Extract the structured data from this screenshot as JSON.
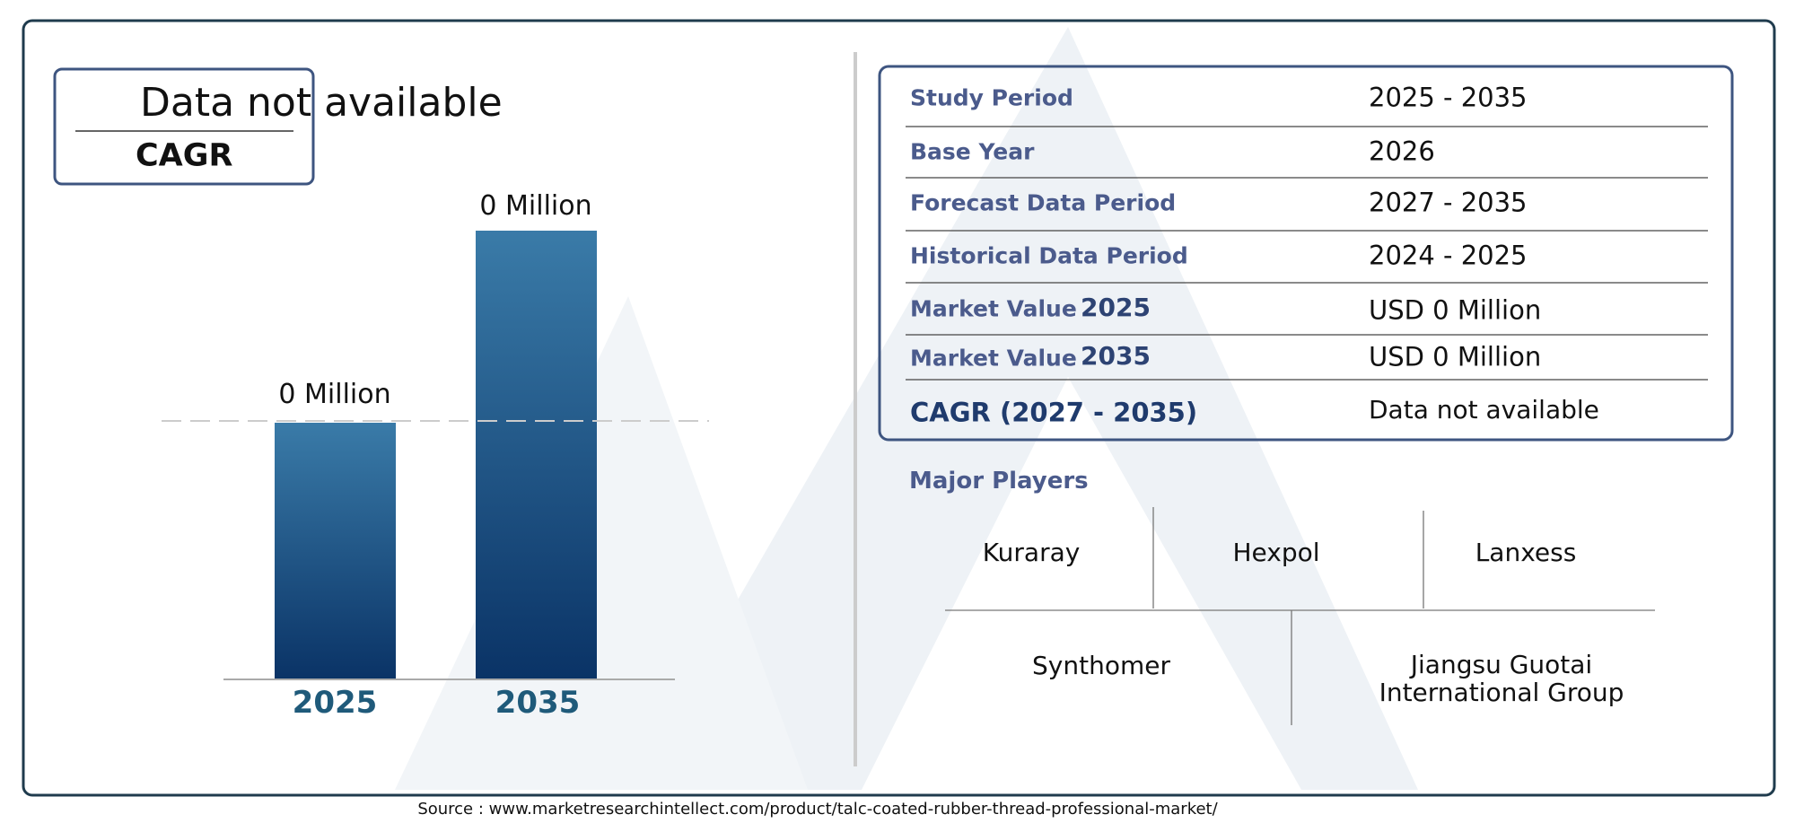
{
  "cagr_box": {
    "value": "Data not available",
    "label": "CAGR"
  },
  "bars": [
    {
      "label": "0 Million",
      "year": "2025"
    },
    {
      "label": "0 Million",
      "year": "2035"
    }
  ],
  "table": {
    "rows": [
      {
        "label": "Study Period",
        "value": "2025 - 2035"
      },
      {
        "label": "Base Year",
        "value": "2026"
      },
      {
        "label": "Forecast Data Period",
        "value": "2027 - 2035"
      },
      {
        "label": "Historical Data Period",
        "value": "2024 - 2025"
      },
      {
        "label": "Market Value",
        "year": "2025",
        "value": "USD 0 Million"
      },
      {
        "label": "Market Value",
        "year": "2035",
        "value": "USD 0 Million"
      },
      {
        "label": "CAGR (2027 - 2035)",
        "value": "Data not available"
      }
    ]
  },
  "major_players": {
    "title": "Major Players",
    "players": [
      "Kuraray",
      "Hexpol",
      "Lanxess",
      "Synthomer",
      "Jiangsu Guotai International Group"
    ]
  },
  "source": "Source : www.marketresearchintellect.com/product/talc-coated-rubber-thread-professional-market/"
}
